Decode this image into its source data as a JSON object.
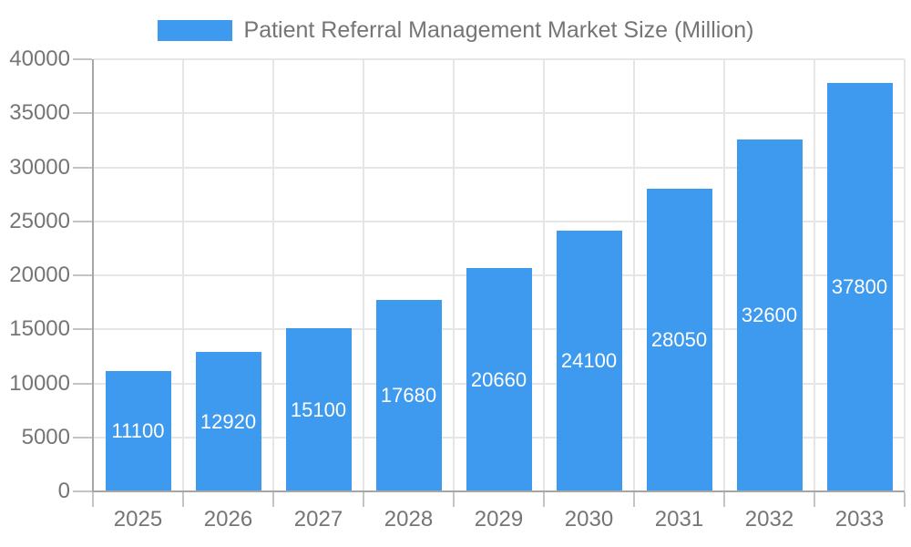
{
  "chart_data": {
    "type": "bar",
    "title": "Patient Referral Management Market Size (Million)",
    "categories": [
      "2025",
      "2026",
      "2027",
      "2028",
      "2029",
      "2030",
      "2031",
      "2032",
      "2033"
    ],
    "values": [
      11100,
      12920,
      15100,
      17680,
      20660,
      24100,
      28050,
      32600,
      37800
    ],
    "xlabel": "",
    "ylabel": "",
    "ylim": [
      0,
      40000
    ],
    "y_axis": {
      "min": 0,
      "max": 40000,
      "step": 5000,
      "tick_labels": [
        "0",
        "5000",
        "10000",
        "15000",
        "20000",
        "25000",
        "30000",
        "35000",
        "40000"
      ]
    },
    "legend_position": "top",
    "value_label_position": "inside-center",
    "grid": true,
    "colors": {
      "bar": "#3D9AEE",
      "bar_label": "#FFFFFF",
      "axis_text": "#757575",
      "background": "#FFFFFF"
    }
  }
}
